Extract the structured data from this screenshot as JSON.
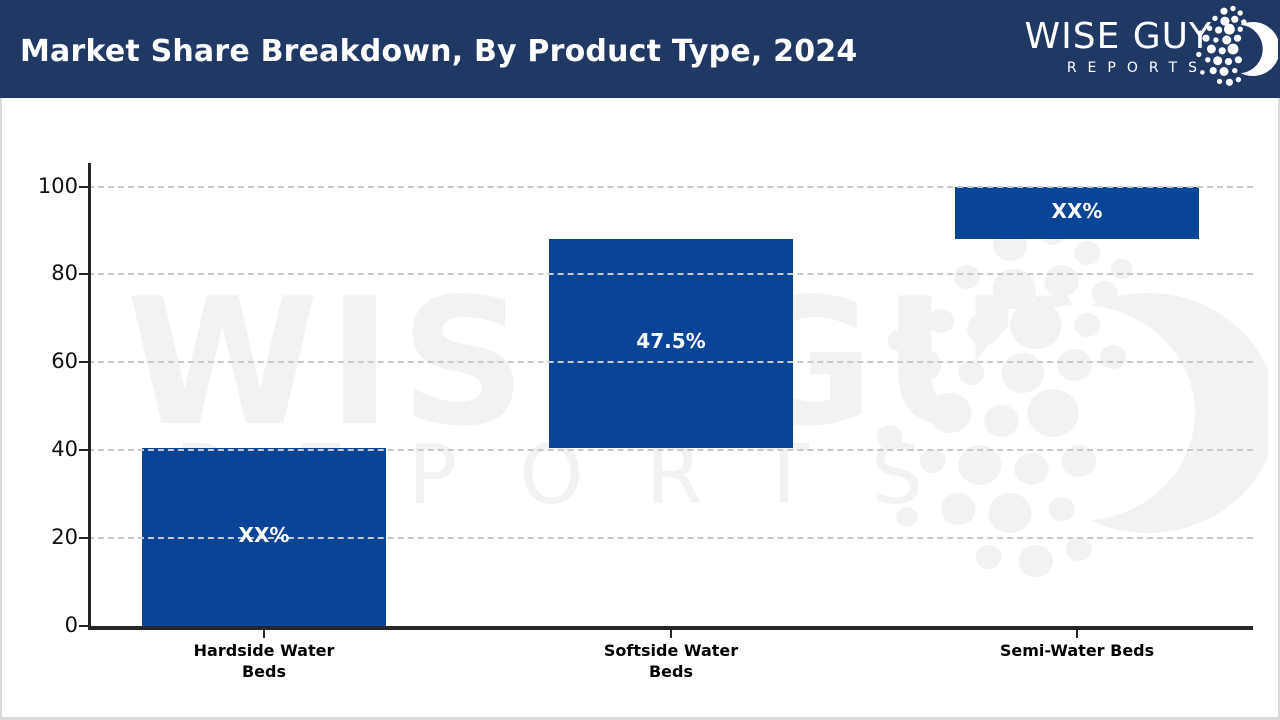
{
  "header": {
    "title": "Market Share Breakdown, By Product Type, 2024",
    "logo": {
      "wordmark": "WISE GUY",
      "subtitle": "REPORTS"
    }
  },
  "watermark": {
    "wordmark": "WISE GUY",
    "subtitle": "REPORTS"
  },
  "chart_data": {
    "type": "bar",
    "subtype": "floating-segment-waterfall",
    "title": "Market Share Breakdown, By Product Type, 2024",
    "categories": [
      "Hardside Water Beds",
      "Softside Water Beds",
      "Semi-Water Beds"
    ],
    "segments": [
      {
        "category": "Hardside Water Beds",
        "start": 0,
        "value": 40.6,
        "label": "XX%"
      },
      {
        "category": "Softside Water Beds",
        "start": 40.6,
        "value": 47.5,
        "label": "47.5%"
      },
      {
        "category": "Semi-Water Beds",
        "start": 88.1,
        "value": 11.9,
        "label": "XX%"
      }
    ],
    "ylim": [
      0,
      100
    ],
    "yticks": [
      0,
      20,
      40,
      60,
      80,
      100
    ],
    "grid": "horizontal-dashed",
    "legend": null,
    "bar_color": "#0a4496",
    "bar_label_color": "#ffffff"
  },
  "colors": {
    "header_bg": "#203864",
    "bar": "#0a4496",
    "grid": "#c9c9c9",
    "axis": "#262626",
    "watermark": "#f2f2f2",
    "frame": "#d9d9d9"
  }
}
